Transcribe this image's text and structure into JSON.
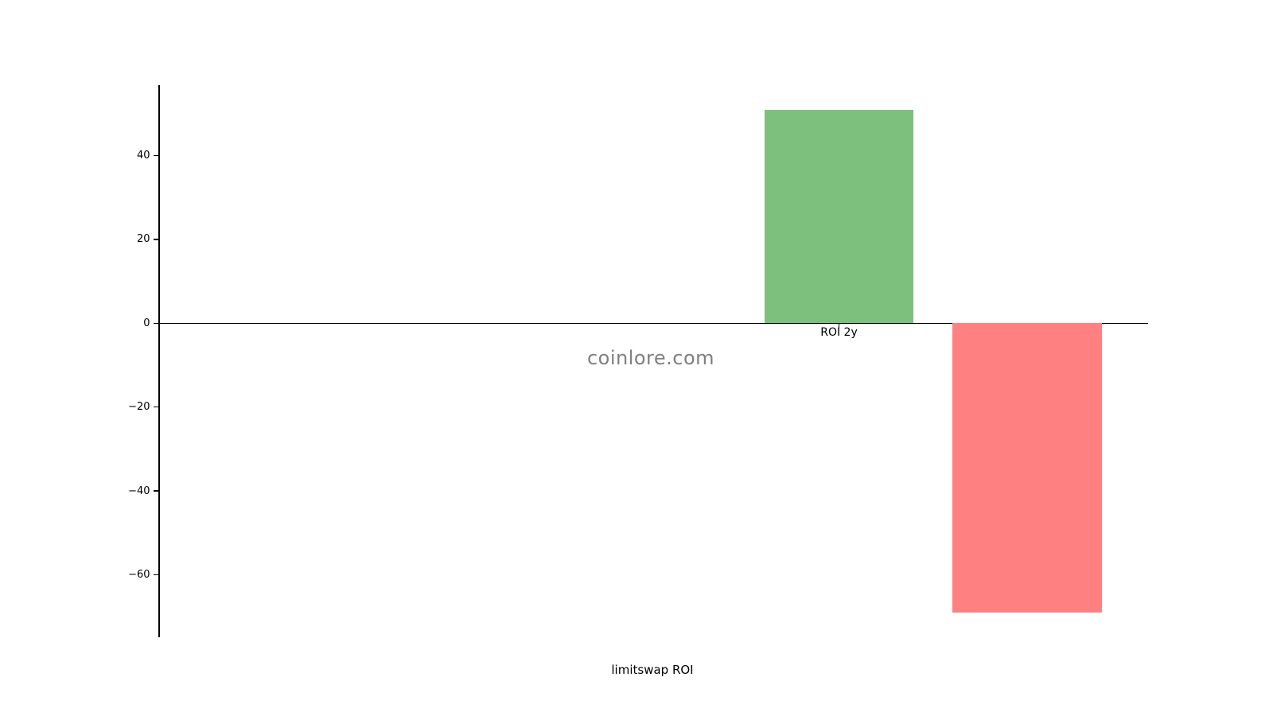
{
  "watermark": "coinlore.com",
  "colors": {
    "positive_bar": "#7dc07e",
    "negative_bar": "#ff8080",
    "axis": "#000000",
    "watermark_text": "#7f7f7f"
  },
  "chart_data": {
    "type": "bar",
    "title": "",
    "xlabel": "limitswap ROI",
    "ylabel": "",
    "categories": [
      "ROI 2y",
      ""
    ],
    "values": [
      51,
      -69
    ],
    "bar_colors": [
      "#7dc07e",
      "#ff8080"
    ],
    "y_ticks": [
      40,
      20,
      0,
      -20,
      -40,
      -60
    ],
    "y_tick_labels": [
      "40",
      "20",
      "0",
      "−20",
      "−40",
      "−60"
    ],
    "ylim": [
      -75,
      57
    ],
    "grid": false,
    "legend": false,
    "baseline": 0
  }
}
